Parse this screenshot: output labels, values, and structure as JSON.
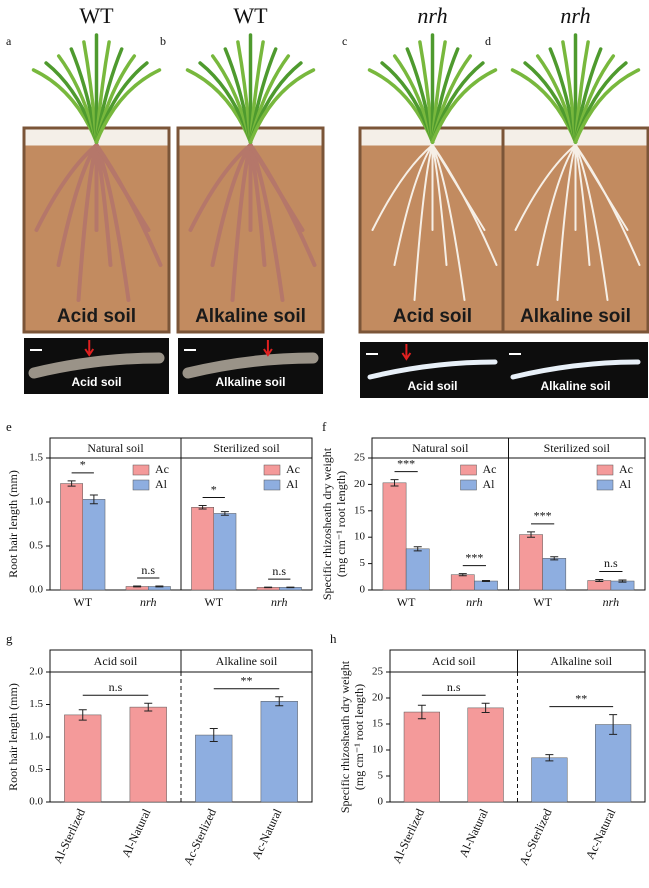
{
  "panels": [
    {
      "letter": "a",
      "genotype": "WT",
      "soil_label": "Acid soil",
      "photo_label": "Acid soil"
    },
    {
      "letter": "b",
      "genotype": "WT",
      "soil_label": "Alkaline soil",
      "photo_label": "Alkaline soil"
    },
    {
      "letter": "c",
      "genotype": "nrh",
      "soil_label": "Acid soil",
      "photo_label": "Acid soil"
    },
    {
      "letter": "d",
      "genotype": "nrh",
      "soil_label": "Alkaline soil",
      "photo_label": "Alkaline soil"
    }
  ],
  "chart_data": [
    {
      "type": "bar",
      "letter": "e",
      "ylabel": "Root hair length (mm)",
      "ylim": [
        0,
        1.5
      ],
      "yticks": [
        {
          "value": 0,
          "label": "0.0"
        },
        {
          "value": 0.5,
          "label": "0.5"
        },
        {
          "value": 1,
          "label": "1.0"
        },
        {
          "value": 1.5,
          "label": "1.5"
        }
      ],
      "divider": "solid",
      "legend": "upper right",
      "facets": [
        {
          "title": "Natural soil",
          "categories": [
            "WT",
            "nrh"
          ],
          "annotations": [
            "*",
            "n.s"
          ],
          "series": [
            {
              "name": "Ac",
              "color": "#f49a9a",
              "values": [
                1.21,
                0.04
              ],
              "errors": [
                0.03,
                0.005
              ]
            },
            {
              "name": "Al",
              "color": "#8eaee0",
              "values": [
                1.03,
                0.04
              ],
              "errors": [
                0.05,
                0.005
              ]
            }
          ]
        },
        {
          "title": "Sterilized soil",
          "categories": [
            "WT",
            "nrh"
          ],
          "annotations": [
            "*",
            "n.s"
          ],
          "series": [
            {
              "name": "Ac",
              "color": "#f49a9a",
              "values": [
                0.94,
                0.03
              ],
              "errors": [
                0.02,
                0.003
              ]
            },
            {
              "name": "Al",
              "color": "#8eaee0",
              "values": [
                0.87,
                0.03
              ],
              "errors": [
                0.02,
                0.003
              ]
            }
          ]
        }
      ]
    },
    {
      "type": "bar",
      "letter": "f",
      "ylabel": [
        "Specific rhizosheath dry weight",
        "(mg cm⁻¹ root length)"
      ],
      "ylim": [
        0,
        25
      ],
      "yticks": [
        0,
        5,
        10,
        15,
        20,
        25
      ],
      "divider": "solid",
      "legend": "upper right",
      "facets": [
        {
          "title": "Natural soil",
          "categories": [
            "WT",
            "nrh"
          ],
          "annotations": [
            "***",
            "***"
          ],
          "series": [
            {
              "name": "Ac",
              "color": "#f49a9a",
              "values": [
                20.3,
                2.9
              ],
              "errors": [
                0.6,
                0.2
              ]
            },
            {
              "name": "Al",
              "color": "#8eaee0",
              "values": [
                7.8,
                1.7
              ],
              "errors": [
                0.4,
                0.1
              ]
            }
          ]
        },
        {
          "title": "Sterilized soil",
          "categories": [
            "WT",
            "nrh"
          ],
          "annotations": [
            "***",
            "n.s"
          ],
          "series": [
            {
              "name": "Ac",
              "color": "#f49a9a",
              "values": [
                10.5,
                1.8
              ],
              "errors": [
                0.5,
                0.2
              ]
            },
            {
              "name": "Al",
              "color": "#8eaee0",
              "values": [
                6.0,
                1.7
              ],
              "errors": [
                0.3,
                0.2
              ]
            }
          ]
        }
      ]
    },
    {
      "type": "bar",
      "letter": "g",
      "ylabel": "Root hair length (mm)",
      "ylim": [
        0,
        2
      ],
      "yticks": [
        {
          "value": 0,
          "label": "0.0"
        },
        {
          "value": 0.5,
          "label": "0.5"
        },
        {
          "value": 1,
          "label": "1.0"
        },
        {
          "value": 1.5,
          "label": "1.5"
        },
        {
          "value": 2,
          "label": "2.0"
        }
      ],
      "divider": "dashed",
      "facets": [
        {
          "title": "Acid soil",
          "categories": [
            "Al-Sterlized",
            "Al-Natural"
          ],
          "color": "#f49a9a",
          "values": [
            1.34,
            1.46
          ],
          "errors": [
            0.08,
            0.06
          ],
          "annotation": "n.s"
        },
        {
          "title": "Alkaline soil",
          "categories": [
            "Ac-Sterlized",
            "Ac-Natural"
          ],
          "color": "#8eaee0",
          "values": [
            1.03,
            1.55
          ],
          "errors": [
            0.1,
            0.07
          ],
          "annotation": "**"
        }
      ]
    },
    {
      "type": "bar",
      "letter": "h",
      "ylabel": [
        "Specific rhizosheath dry weight",
        "(mg cm⁻¹ root length)"
      ],
      "ylim": [
        0,
        25
      ],
      "yticks": [
        0,
        5,
        10,
        15,
        20,
        25
      ],
      "divider": "dashed",
      "facets": [
        {
          "title": "Acid soil",
          "categories": [
            "Al-Sterlized",
            "Al-Natural"
          ],
          "color": "#f49a9a",
          "values": [
            17.3,
            18.1
          ],
          "errors": [
            1.3,
            0.9
          ],
          "annotation": "n.s"
        },
        {
          "title": "Alkaline soil",
          "categories": [
            "Ac-Sterlized",
            "Ac-Natural"
          ],
          "color": "#8eaee0",
          "values": [
            8.5,
            14.9
          ],
          "errors": [
            0.6,
            1.9
          ],
          "annotation": "**"
        }
      ]
    }
  ]
}
